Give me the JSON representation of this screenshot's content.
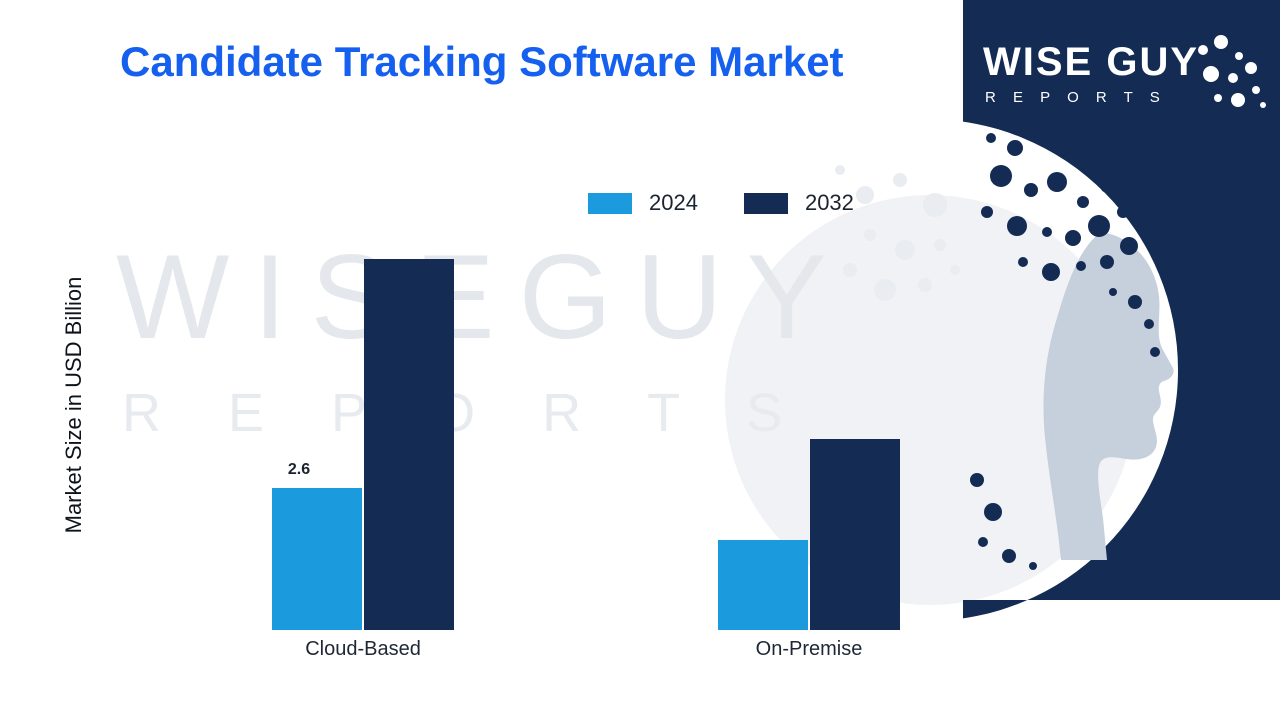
{
  "title": "Candidate Tracking Software Market",
  "brand": {
    "line1": "WISE GUY",
    "line2": "R E P O R T S"
  },
  "watermark": {
    "line1": "WISEGUY",
    "line2": "R E P O R T S"
  },
  "chart_data": {
    "type": "bar",
    "title": "Candidate Tracking Software Market",
    "categories": [
      "Cloud-Based",
      "On-Premise"
    ],
    "series": [
      {
        "name": "2024",
        "color": "#1b9ade",
        "values": [
          2.6,
          1.65
        ],
        "labels": [
          "2.6",
          ""
        ]
      },
      {
        "name": "2032",
        "color": "#142b54",
        "values": [
          6.8,
          3.5
        ],
        "labels": [
          "",
          ""
        ]
      }
    ],
    "ylabel": "Market Size in USD Billion",
    "xlabel": "",
    "ylim": [
      0,
      7
    ],
    "grid": false,
    "legend_position": "top-right"
  },
  "colors": {
    "title": "#1560ef",
    "panel": "#142b54",
    "bar_2024": "#1b9ade",
    "bar_2032": "#142b54",
    "watermark_text": "#e4e7ec"
  }
}
